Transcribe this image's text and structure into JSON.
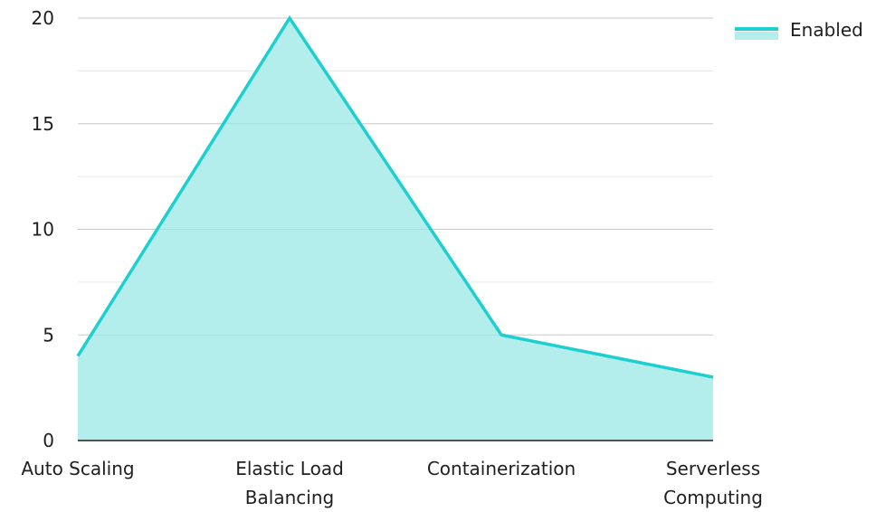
{
  "chart_data": {
    "type": "area",
    "categories": [
      "Auto Scaling",
      "Elastic Load Balancing",
      "Containerization",
      "Serverless Computing"
    ],
    "series": [
      {
        "name": "Enabled",
        "values": [
          4,
          20,
          5,
          3
        ]
      }
    ],
    "ylim": [
      0,
      20
    ],
    "yticks": [
      0,
      5,
      10,
      15,
      20
    ],
    "legend": {
      "position": "top-right",
      "label": "Enabled"
    },
    "grid": true,
    "colors": {
      "line": "#1ecfcf",
      "fill": "#b3eeed",
      "grid_major": "#c8c8c8",
      "grid_minor": "#e6e6e6",
      "axis": "#1f1f1f",
      "text": "#1f1f1f"
    }
  }
}
